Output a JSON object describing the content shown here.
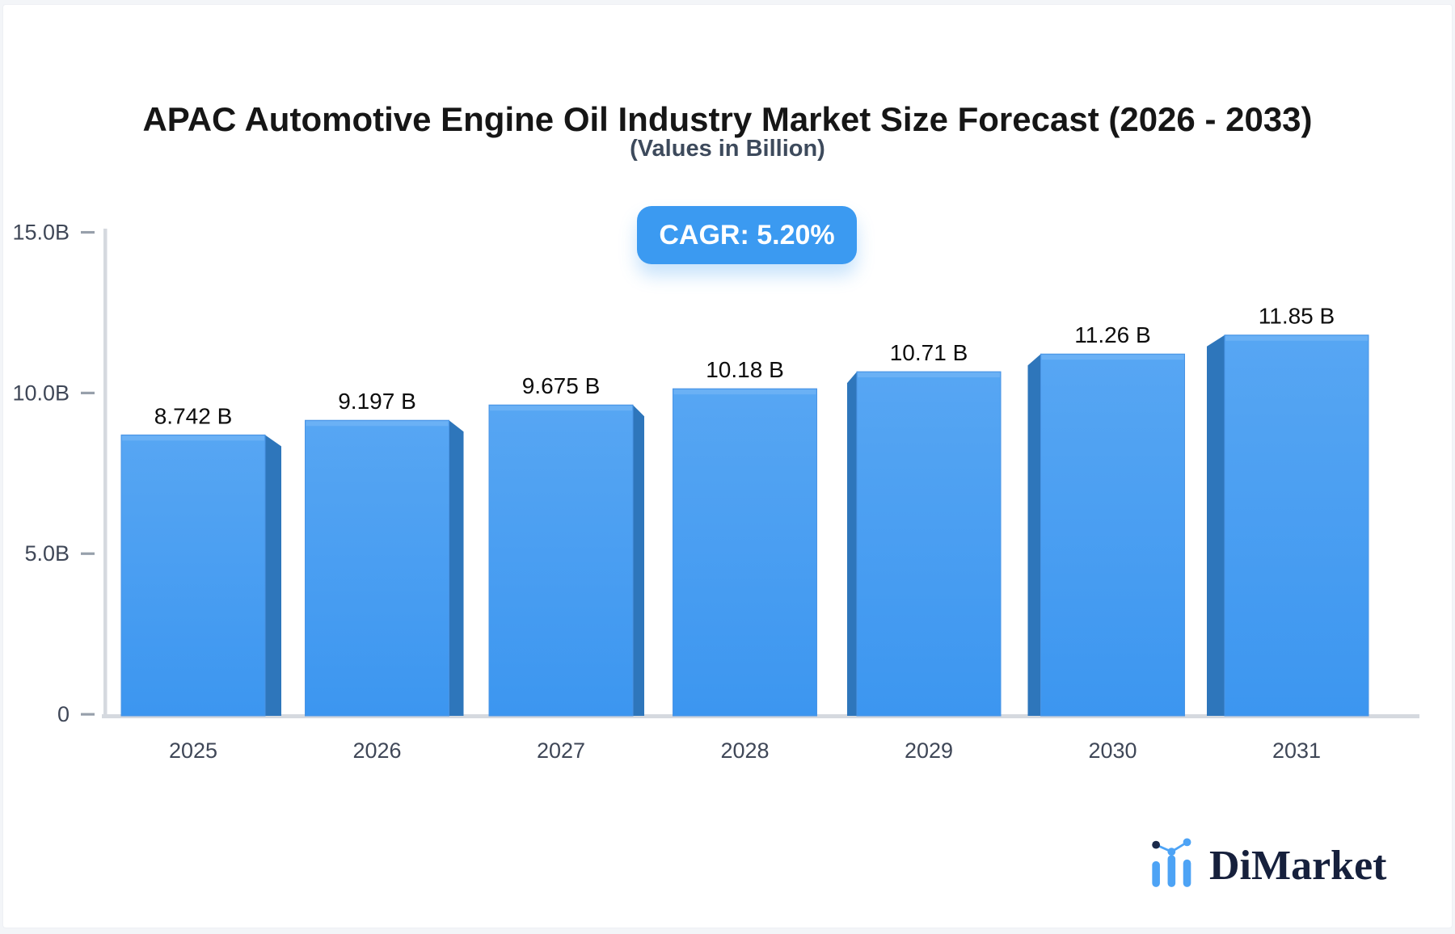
{
  "page": {
    "background": "#f3f5f8",
    "card_background": "#ffffff"
  },
  "header": {
    "title": "APAC Automotive Engine Oil Industry Market Size Forecast (2026 - 2033)",
    "subtitle": "(Values in Billion)",
    "cagr_badge": "CAGR: 5.20%"
  },
  "chart_data": {
    "type": "bar",
    "title": "APAC Automotive Engine Oil Industry Market Size Forecast (2026 - 2033)",
    "subtitle": "(Values in Billion)",
    "unit": "Billion",
    "categories": [
      "2025",
      "2026",
      "2027",
      "2028",
      "2029",
      "2030",
      "2031"
    ],
    "values": [
      8.742,
      9.197,
      9.675,
      10.18,
      10.71,
      11.26,
      11.85
    ],
    "value_labels": [
      "8.742 B",
      "9.197 B",
      "9.675 B",
      "10.18 B",
      "10.71 B",
      "11.26 B",
      "11.85 B"
    ],
    "cagr_label": "CAGR: 5.20%",
    "ylim": [
      0,
      15
    ],
    "yticks": [
      {
        "value": 0,
        "label": "0"
      },
      {
        "value": 5,
        "label": "5.0B"
      },
      {
        "value": 10,
        "label": "10.0B"
      },
      {
        "value": 15,
        "label": "15.0B"
      }
    ],
    "grid": false,
    "legend": null,
    "bar_style": "3d-perspective-center",
    "colors": {
      "bar_face_top": "#57a6f3",
      "bar_face_bottom": "#3c96f0",
      "bar_top_highlight": "#7cb9f6",
      "bar_side": "#2e76bb",
      "axis_line": "#d5d9df",
      "tick_dash": "#97a0ab",
      "tick_label": "#3f4757",
      "value_label": "#0d0d0d",
      "badge_bg": "#3b9af1",
      "badge_text": "#ffffff"
    }
  },
  "footer": {
    "brand": "DiMarket",
    "brand_color": "#16203c",
    "icon": "bar-chart-logo-icon",
    "icon_color": "#4da3f5",
    "icon_dot_color": "#1b2a4a"
  }
}
